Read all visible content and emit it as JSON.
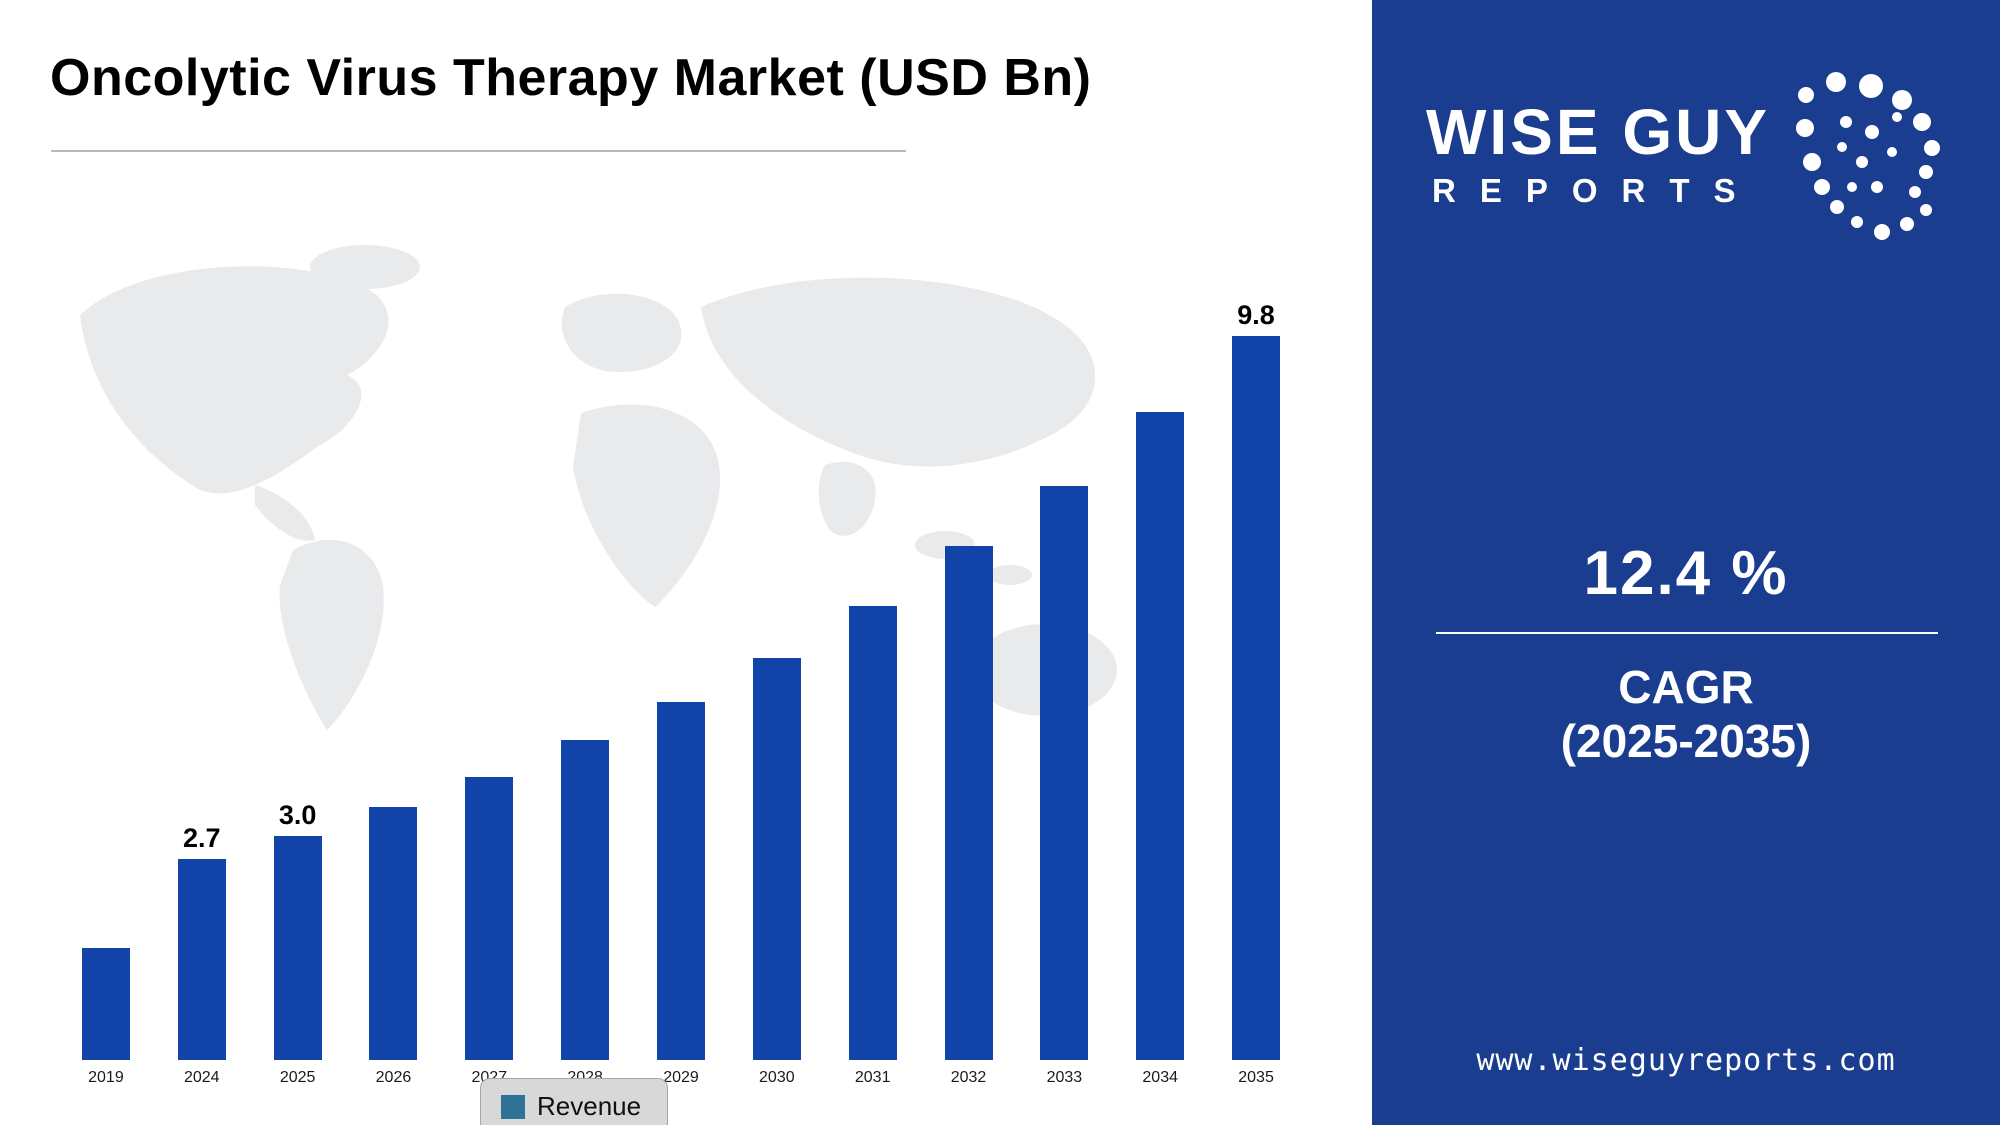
{
  "title": "Oncolytic Virus Therapy Market (USD Bn)",
  "chart_data": {
    "type": "bar",
    "title": "Oncolytic Virus Therapy Market (USD Bn)",
    "categories": [
      "2019",
      "2024",
      "2025",
      "2026",
      "2027",
      "2028",
      "2029",
      "2030",
      "2031",
      "2032",
      "2033",
      "2034",
      "2035"
    ],
    "values": [
      1.5,
      2.7,
      3.0,
      3.4,
      3.8,
      4.3,
      4.8,
      5.4,
      6.1,
      6.9,
      7.7,
      8.7,
      9.8
    ],
    "value_labels": [
      "",
      "2.7",
      "3.0",
      "",
      "",
      "",
      "",
      "",
      "",
      "",
      "",
      "",
      "9.8"
    ],
    "xlabel": "",
    "ylabel": "",
    "ylim": [
      0,
      10.5
    ],
    "grid": false,
    "legend_position": "bottom-center",
    "legend": [
      {
        "label": "Revenue",
        "color": "#2d7396"
      }
    ],
    "bar_color": "#1143a8"
  },
  "sidebar": {
    "background": "#1b3d8f",
    "logo_line1": "WISE GUY",
    "logo_line2": "REPORTS",
    "cagr_value": "12.4 %",
    "cagr_label_line1": "CAGR",
    "cagr_label_line2": "(2025-2035)",
    "website": "www.wiseguyreports.com"
  }
}
